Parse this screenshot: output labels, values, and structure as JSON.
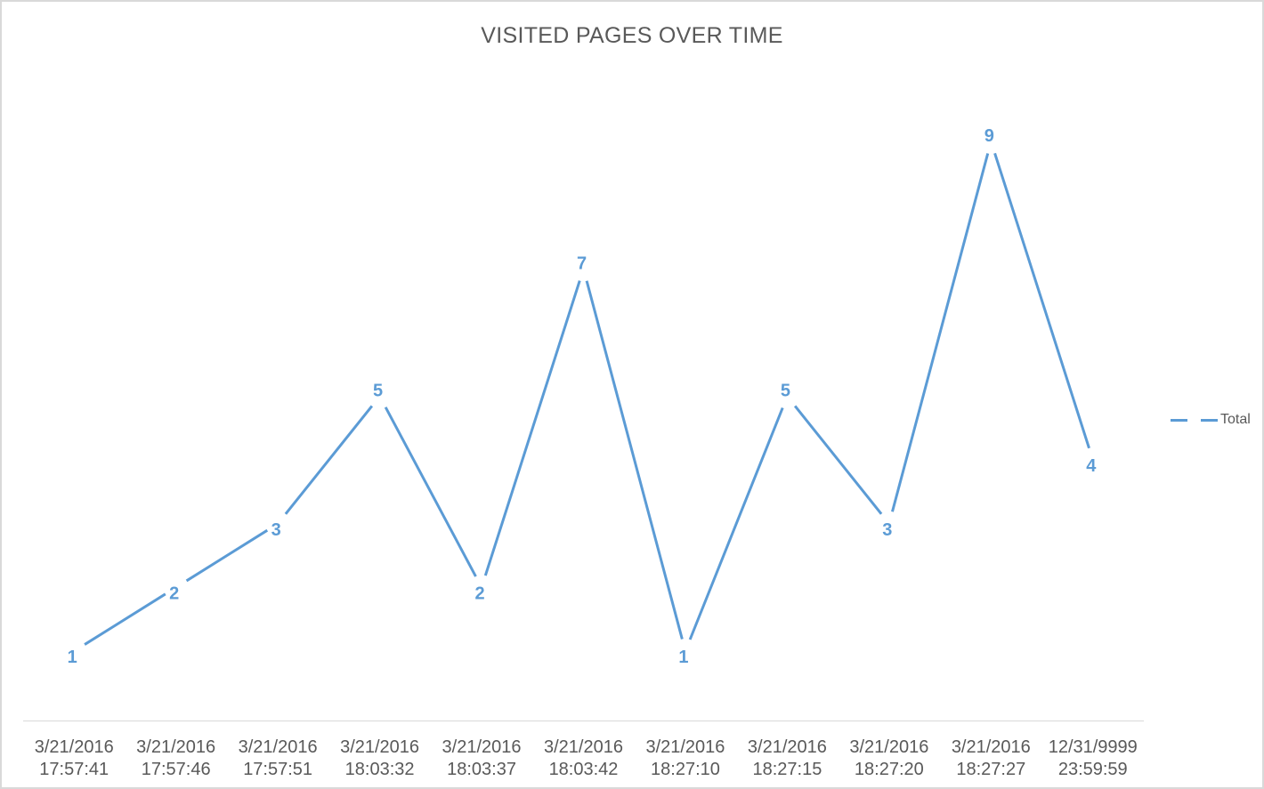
{
  "chart_data": {
    "type": "line",
    "title": "VISITED PAGES OVER TIME",
    "categories": [
      {
        "date": "3/21/2016",
        "time": "17:57:41"
      },
      {
        "date": "3/21/2016",
        "time": "17:57:46"
      },
      {
        "date": "3/21/2016",
        "time": "17:57:51"
      },
      {
        "date": "3/21/2016",
        "time": "18:03:32"
      },
      {
        "date": "3/21/2016",
        "time": "18:03:37"
      },
      {
        "date": "3/21/2016",
        "time": "18:03:42"
      },
      {
        "date": "3/21/2016",
        "time": "18:27:10"
      },
      {
        "date": "3/21/2016",
        "time": "18:27:15"
      },
      {
        "date": "3/21/2016",
        "time": "18:27:20"
      },
      {
        "date": "3/21/2016",
        "time": "18:27:27"
      },
      {
        "date": "12/31/9999",
        "time": "23:59:59"
      }
    ],
    "series": [
      {
        "name": "Total",
        "values": [
          1,
          2,
          3,
          5,
          2,
          7,
          1,
          5,
          3,
          9,
          4
        ],
        "color": "#5B9BD5",
        "line_style": "dashed",
        "data_labels_visible": true
      }
    ],
    "legend": {
      "position": "right",
      "entries": [
        "Total"
      ]
    },
    "grid": false,
    "y_axis_visible": false,
    "xlabel": "",
    "ylabel": "",
    "colors": {
      "line": "#5B9BD5",
      "data_label": "#5B9BD5",
      "axis_line": "#D9D9D9",
      "axis_text": "#595959",
      "title_text": "#595959",
      "frame_border": "#D9D9D9",
      "background": "#FFFFFF"
    }
  }
}
